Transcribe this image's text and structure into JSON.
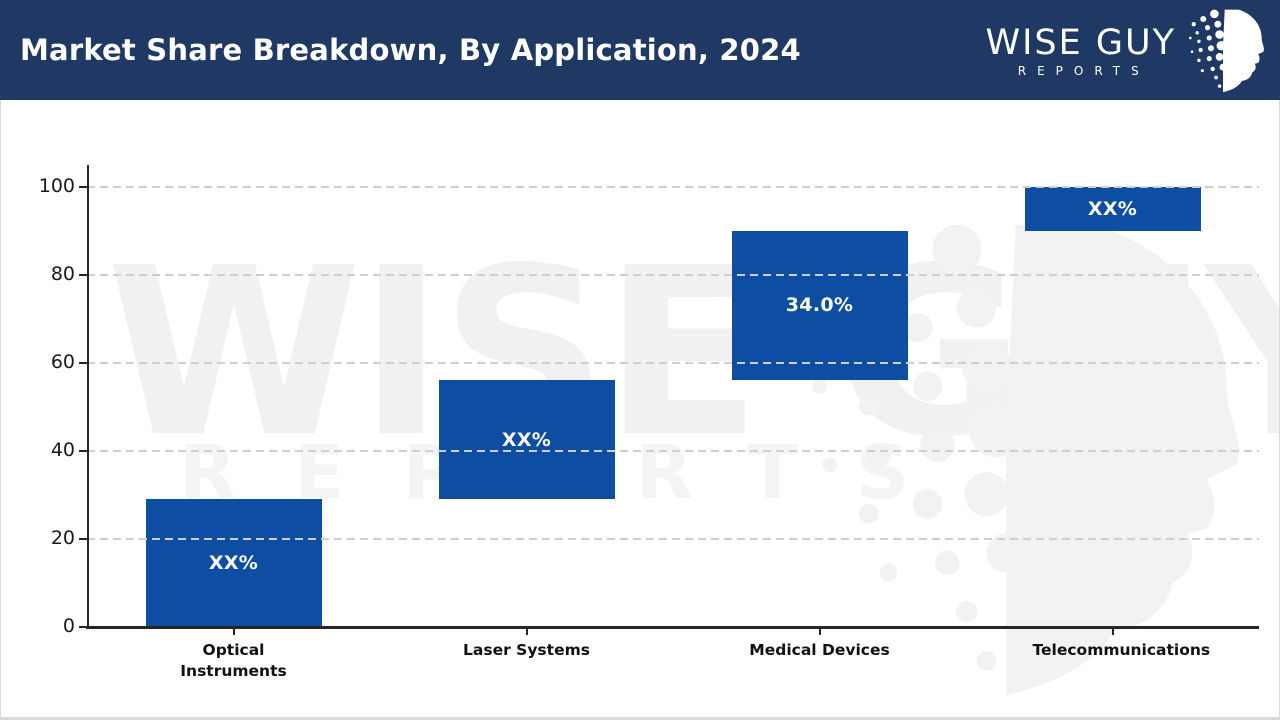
{
  "header": {
    "title": "Market Share Breakdown, By Application, 2024",
    "logo": {
      "name": "WISE GUY",
      "tagline": "REPORTS"
    }
  },
  "watermark": {
    "name": "WISE GUY",
    "tagline": "REPORTS"
  },
  "chart_data": {
    "type": "bar",
    "subtype": "waterfall-floating-bars",
    "title": "Market Share Breakdown, By Application, 2024",
    "xlabel": "",
    "ylabel": "",
    "categories": [
      "Optical Instruments",
      "Laser Systems",
      "Medical Devices",
      "Telecommunications"
    ],
    "bars": [
      {
        "category": "Optical Instruments",
        "base": 0,
        "top": 29,
        "value_label": "XX%"
      },
      {
        "category": "Laser Systems",
        "base": 29,
        "top": 56,
        "value_label": "XX%"
      },
      {
        "category": "Medical Devices",
        "base": 56,
        "top": 90,
        "value_label": "34.0%"
      },
      {
        "category": "Telecommunications",
        "base": 90,
        "top": 100,
        "value_label": "XX%"
      }
    ],
    "yticks": [
      0,
      20,
      40,
      60,
      80,
      100
    ],
    "ylim": [
      0,
      105
    ],
    "grid": "horizontal-dashed-over-bars",
    "legend": "none",
    "colors": {
      "bar": "#0d4da2",
      "header_bg": "#1f3864",
      "grid": "#cfcfcf",
      "axis": "#262626",
      "bar_label_text": "#ffffff",
      "tick_text": "#1a1a1a",
      "watermark": "#f1f1f1"
    }
  }
}
